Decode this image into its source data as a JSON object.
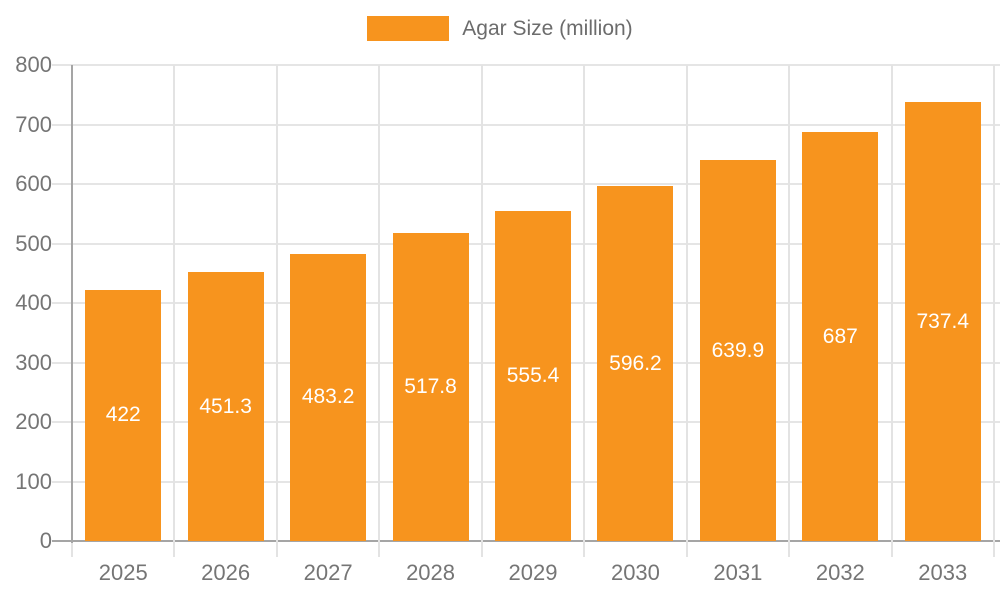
{
  "chart_data": {
    "type": "bar",
    "title": "",
    "legend": "Agar Size (million)",
    "legend_position": "top-center",
    "categories": [
      "2025",
      "2026",
      "2027",
      "2028",
      "2029",
      "2030",
      "2031",
      "2032",
      "2033"
    ],
    "series": [
      {
        "name": "Agar Size (million)",
        "values": [
          422,
          451.3,
          483.2,
          517.8,
          555.4,
          596.2,
          639.9,
          687,
          737.4
        ],
        "value_labels": [
          "422",
          "451.3",
          "483.2",
          "517.8",
          "555.4",
          "596.2",
          "639.9",
          "687",
          "737.4"
        ]
      }
    ],
    "xlabel": "",
    "ylabel": "",
    "ylim": [
      0,
      800
    ],
    "yticks": [
      0,
      100,
      200,
      300,
      400,
      500,
      600,
      700,
      800
    ],
    "grid": true,
    "colors": {
      "bar": "#f7941e",
      "bar_label": "#ffffff",
      "axis": "#a5a5a5",
      "gridline": "#e5e5e5",
      "tick_label": "#757575",
      "legend_text": "#6c6c6c",
      "background": "#ffffff"
    }
  }
}
